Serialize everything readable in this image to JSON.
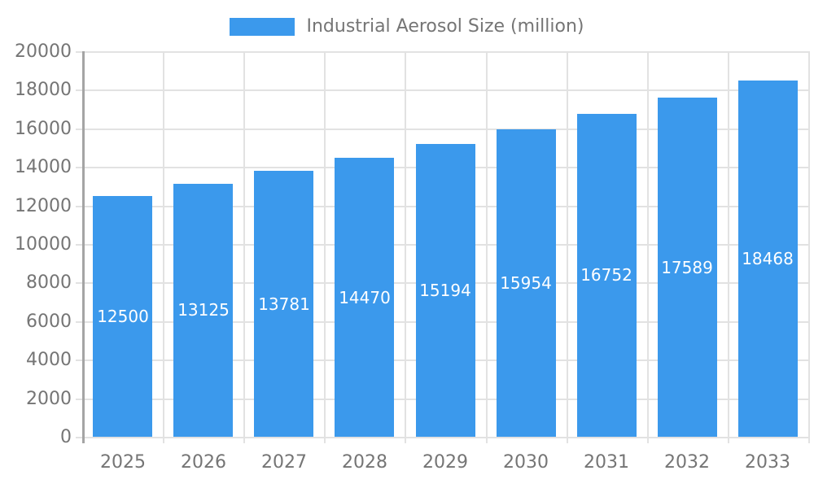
{
  "chart_data": {
    "type": "bar",
    "title": "Industrial Aerosol Size (million)",
    "categories": [
      "2025",
      "2026",
      "2027",
      "2028",
      "2029",
      "2030",
      "2031",
      "2032",
      "2033"
    ],
    "series": [
      {
        "name": "Industrial Aerosol Size (million)",
        "values": [
          12500,
          13125,
          13781,
          14470,
          15194,
          15954,
          16752,
          17589,
          18468
        ]
      }
    ],
    "bar_value_labels": [
      "12500",
      "13125",
      "13781",
      "14470",
      "15194",
      "15954",
      "16752",
      "17589",
      "18468"
    ],
    "xlabel": "",
    "ylabel": "",
    "ylim": [
      0,
      20000
    ],
    "y_tick_step": 2000,
    "y_tick_labels": [
      "0",
      "2000",
      "4000",
      "6000",
      "8000",
      "10000",
      "12000",
      "14000",
      "16000",
      "18000",
      "20000"
    ],
    "grid": "both",
    "legend_position": "top",
    "value_label_position": "center-of-bar",
    "colors": {
      "bar": "#3b99ec",
      "bar_label_text": "#ffffff",
      "axis_text": "#757575",
      "grid_line": "#e2e2e2",
      "axis_line": "#a4a4a4",
      "background": "#ffffff"
    }
  }
}
